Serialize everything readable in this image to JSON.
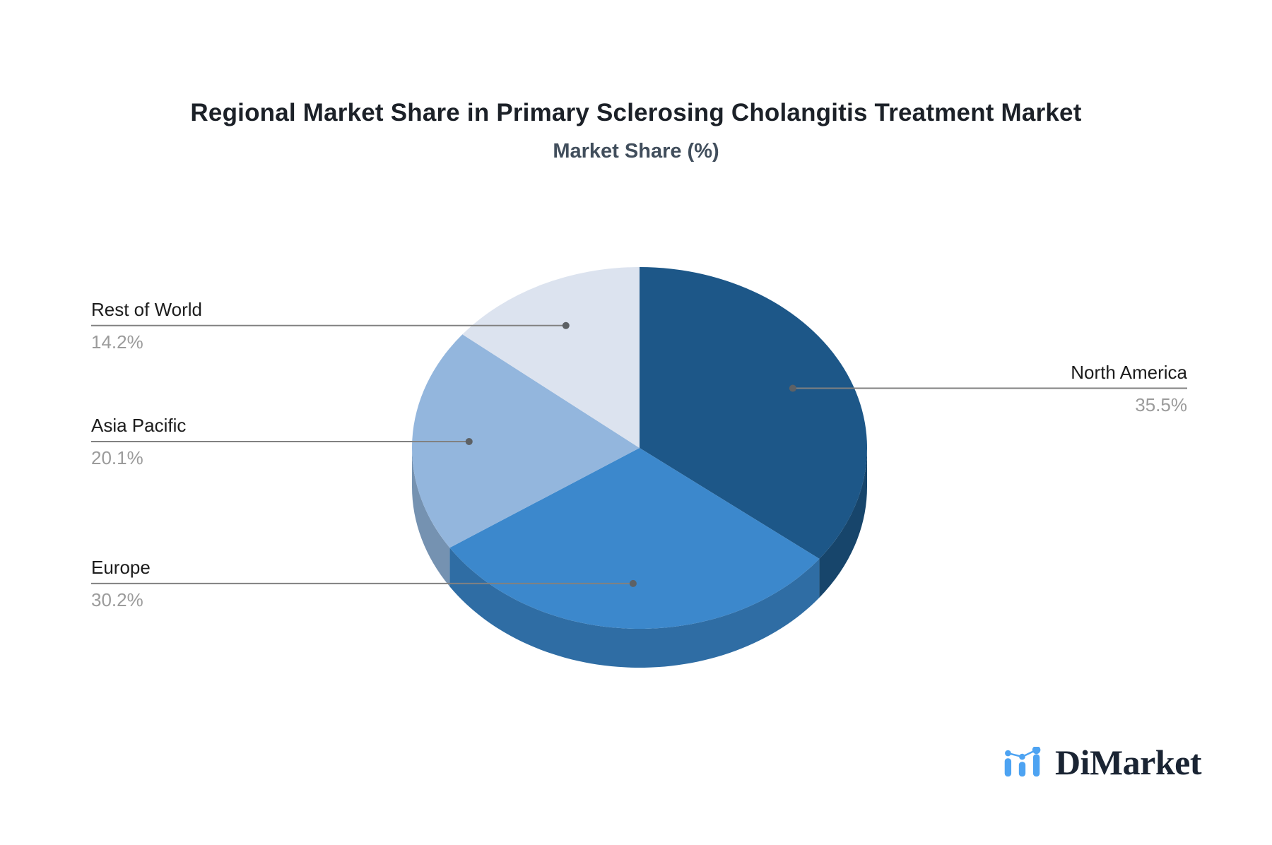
{
  "header": {
    "title": "Regional Market Share in Primary Sclerosing Cholangitis Treatment Market",
    "subtitle": "Market Share (%)"
  },
  "brand": {
    "name": "DiMarket",
    "icon": "bar-chart-logo-icon",
    "icon_color": "#4da3f2",
    "text_color": "#1a2433"
  },
  "colors": {
    "leader_line": "#818181",
    "leader_dot": "#5d6165",
    "label_text": "#1c1c1c",
    "percent_text": "#9b9b9b"
  },
  "chart_data": {
    "type": "pie",
    "style": "3d",
    "title": "Regional Market Share in Primary Sclerosing Cholangitis Treatment Market",
    "subtitle": "Market Share (%)",
    "unit": "%",
    "total": 100,
    "start_angle_deg": 0,
    "clockwise": true,
    "legend_position": "none",
    "label_style": "leader-lines",
    "segments": [
      {
        "label": "North America",
        "value": 35.5,
        "display": "35.5%",
        "color": "#1d5788",
        "side_color": "#17456b",
        "label_side": "right"
      },
      {
        "label": "Europe",
        "value": 30.2,
        "display": "30.2%",
        "color": "#3c88cc",
        "side_color": "#2f6da4",
        "label_side": "left"
      },
      {
        "label": "Asia Pacific",
        "value": 20.1,
        "display": "20.1%",
        "color": "#93b6dd",
        "side_color": "#7592b1",
        "label_side": "left"
      },
      {
        "label": "Rest of World",
        "value": 14.2,
        "display": "14.2%",
        "color": "#dce3ef",
        "side_color": "#b8c1d2",
        "label_side": "left"
      }
    ]
  }
}
